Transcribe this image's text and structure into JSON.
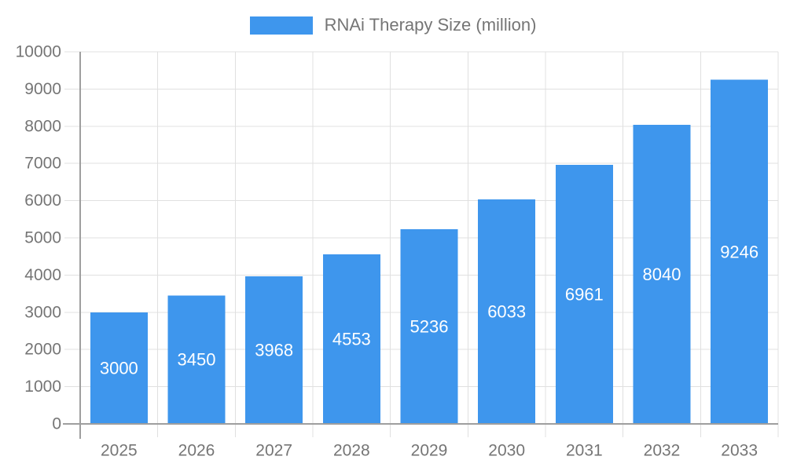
{
  "legend": {
    "label": "RNAi Therapy Size (million)"
  },
  "chart_data": {
    "type": "bar",
    "title": "RNAi Therapy Size (million)",
    "categories": [
      "2025",
      "2026",
      "2027",
      "2028",
      "2029",
      "2030",
      "2031",
      "2032",
      "2033"
    ],
    "values": [
      3000,
      3450,
      3968,
      4553,
      5236,
      6033,
      6961,
      8040,
      9246
    ],
    "series_name": "RNAi Therapy Size (million)",
    "xlabel": "",
    "ylabel": "",
    "ylim": [
      0,
      10000
    ],
    "ytick_step": 1000,
    "grid": true,
    "legend_position": "top",
    "bar_color": "#3E96ED",
    "value_label_color": "#FFFFFF",
    "axis_text_color": "#757575",
    "grid_color": "#E0E0E0",
    "axis_line_color": "#9E9E9E",
    "background_color": "#FFFFFF"
  }
}
